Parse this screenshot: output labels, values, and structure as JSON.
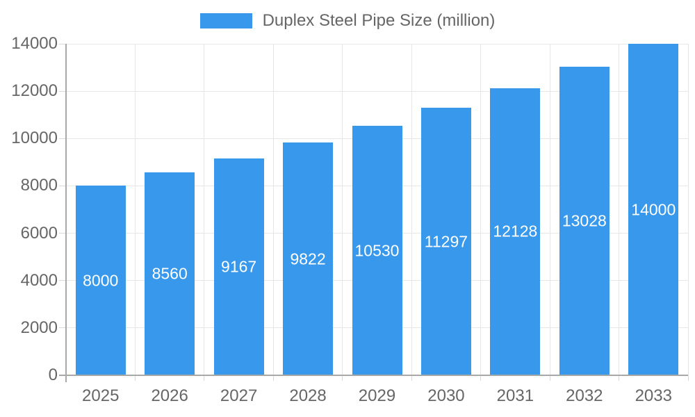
{
  "chart_data": {
    "type": "bar",
    "title": "Duplex Steel Pipe Size (million)",
    "categories": [
      "2025",
      "2026",
      "2027",
      "2028",
      "2029",
      "2030",
      "2031",
      "2032",
      "2033"
    ],
    "values": [
      8000,
      8560,
      9167,
      9822,
      10530,
      11297,
      12128,
      13028,
      14000
    ],
    "series": [
      {
        "name": "Duplex Steel Pipe Size (million)",
        "values": [
          8000,
          8560,
          9167,
          9822,
          10530,
          11297,
          12128,
          13028,
          14000
        ]
      }
    ],
    "xlabel": "",
    "ylabel": "",
    "ylim": [
      0,
      14000
    ],
    "yticks": [
      0,
      2000,
      4000,
      6000,
      8000,
      10000,
      12000,
      14000
    ],
    "grid": true,
    "legend_position": "top-center",
    "value_label_position": "inside-center",
    "colors": {
      "bar": "#3899EC",
      "axis_text": "#666666",
      "bar_label_text": "#ffffff",
      "axis_line": "#a8a8a8",
      "gridline": "#e6e6e6",
      "tick": "#d9d9d9",
      "background": "#ffffff"
    }
  }
}
